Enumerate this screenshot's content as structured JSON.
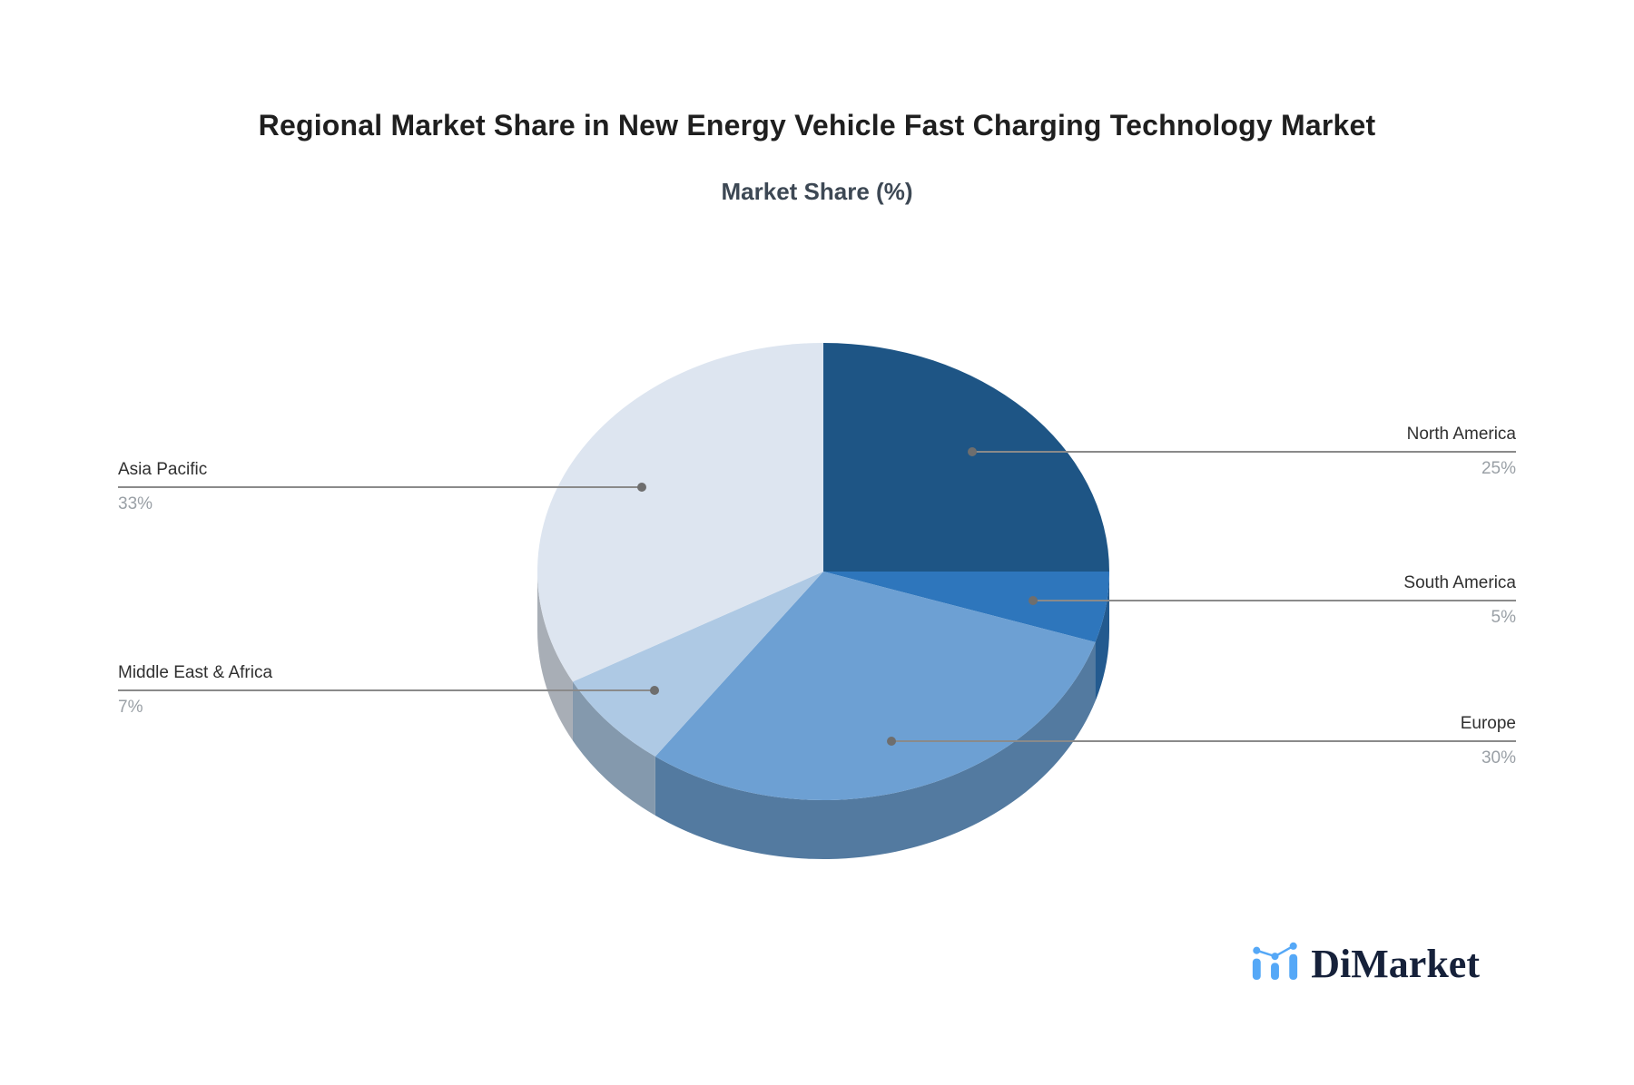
{
  "title": "Regional Market Share in New Energy Vehicle Fast Charging Technology Market",
  "subtitle": "Market Share (%)",
  "chart_data": {
    "type": "pie",
    "style": "3d-pie",
    "unit": "%",
    "start_angle_deg": 0,
    "direction": "clockwise",
    "legend_position": "callout-labels",
    "segments": [
      {
        "label": "North America",
        "value": 25,
        "pct_label": "25%",
        "color": "#1e5585"
      },
      {
        "label": "South America",
        "value": 5,
        "pct_label": "5%",
        "color": "#2e76bc"
      },
      {
        "label": "Europe",
        "value": 30,
        "pct_label": "30%",
        "color": "#6da0d3"
      },
      {
        "label": "Middle East & Africa",
        "value": 7,
        "pct_label": "7%",
        "color": "#aec9e4"
      },
      {
        "label": "Asia Pacific",
        "value": 33,
        "pct_label": "33%",
        "color": "#dde5f0"
      }
    ],
    "label_name_color": "#303030",
    "label_value_color": "#9aa0a6",
    "leader_line_color": "#8a8a8a",
    "leader_dot_color": "#6e6e6e"
  },
  "logo": {
    "text": "DiMarket",
    "icon": "bar-chart-trend-icon",
    "icon_color": "#55a8f7",
    "text_color": "#16213a"
  }
}
